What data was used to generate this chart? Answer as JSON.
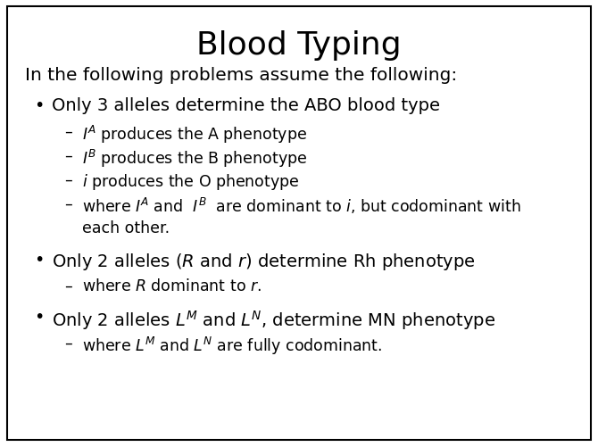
{
  "title": "Blood Typing",
  "background_color": "#ffffff",
  "border_color": "#000000",
  "text_color": "#000000",
  "title_fontsize": 26,
  "intro_fontsize": 14.5,
  "bullet_fontsize": 14,
  "sub_fontsize": 12.5,
  "intro_text": "In the following problems assume the following:",
  "figsize": [
    6.7,
    5.02
  ],
  "dpi": 100
}
